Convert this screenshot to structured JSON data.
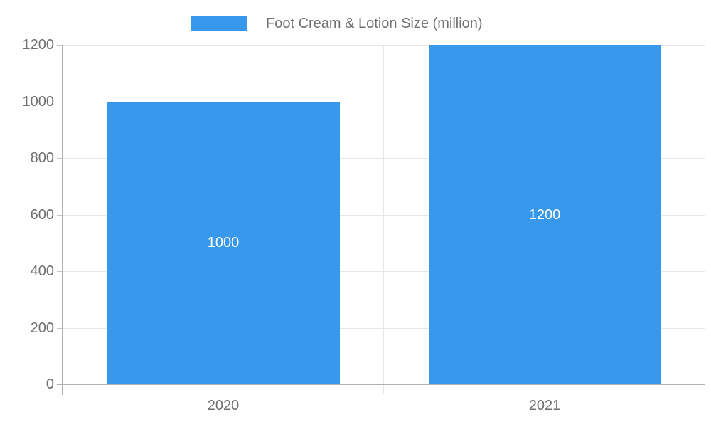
{
  "colors": {
    "bar": "#3899ec",
    "grid": "#e6e6e6",
    "axis": "#b0b0b0",
    "tick": "#c6c6c6",
    "tick_label": "#6f6f6f",
    "value_label": "#ffffff",
    "background": "#ffffff"
  },
  "chart_data": {
    "type": "bar",
    "title": "Foot Cream & Lotion Size (million)",
    "categories": [
      "2020",
      "2021"
    ],
    "series": [
      {
        "name": "Foot Cream & Lotion Size (million)",
        "values": [
          1000,
          1200
        ]
      }
    ],
    "value_labels": [
      "1000",
      "1200"
    ],
    "yticks": [
      0,
      200,
      400,
      600,
      800,
      1000,
      1200
    ],
    "ytick_labels": [
      "0",
      "200",
      "400",
      "600",
      "800",
      "1000",
      "1200"
    ],
    "ylim": [
      0,
      1200
    ],
    "xlabel": "",
    "ylabel": "",
    "grid": true,
    "legend_position": "top"
  }
}
